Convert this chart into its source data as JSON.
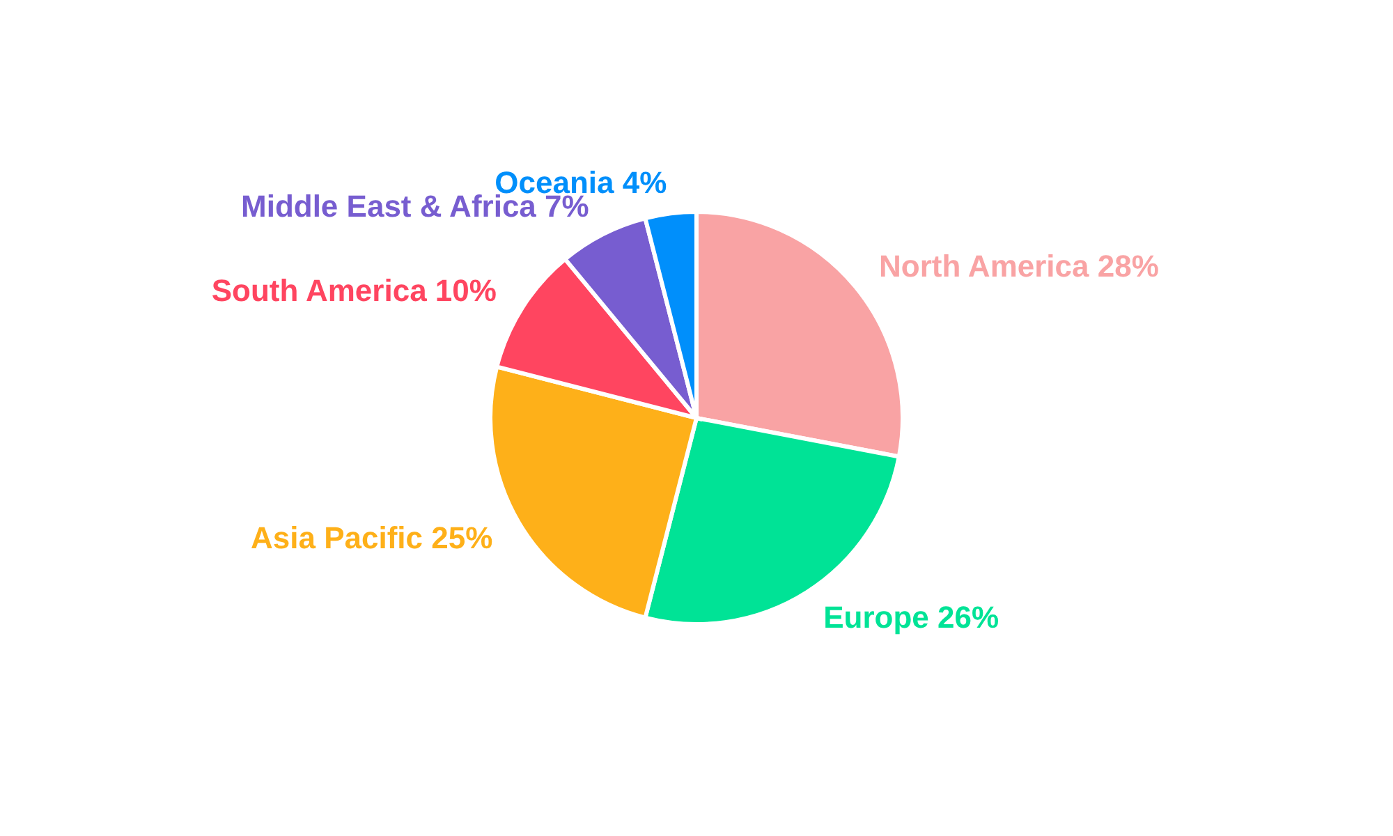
{
  "chart_data": {
    "type": "pie",
    "categories": [
      "North America",
      "Europe",
      "Asia Pacific",
      "South America",
      "Middle East & Africa",
      "Oceania"
    ],
    "values": [
      28,
      26,
      25,
      10,
      7,
      4
    ],
    "value_labels": [
      "28%",
      "26%",
      "25%",
      "10%",
      "7%",
      "4%"
    ],
    "colors": [
      "#f9a3a4",
      "#00e396",
      "#feb019",
      "#ff4560",
      "#775dd0",
      "#008ffb"
    ],
    "legend": false
  }
}
